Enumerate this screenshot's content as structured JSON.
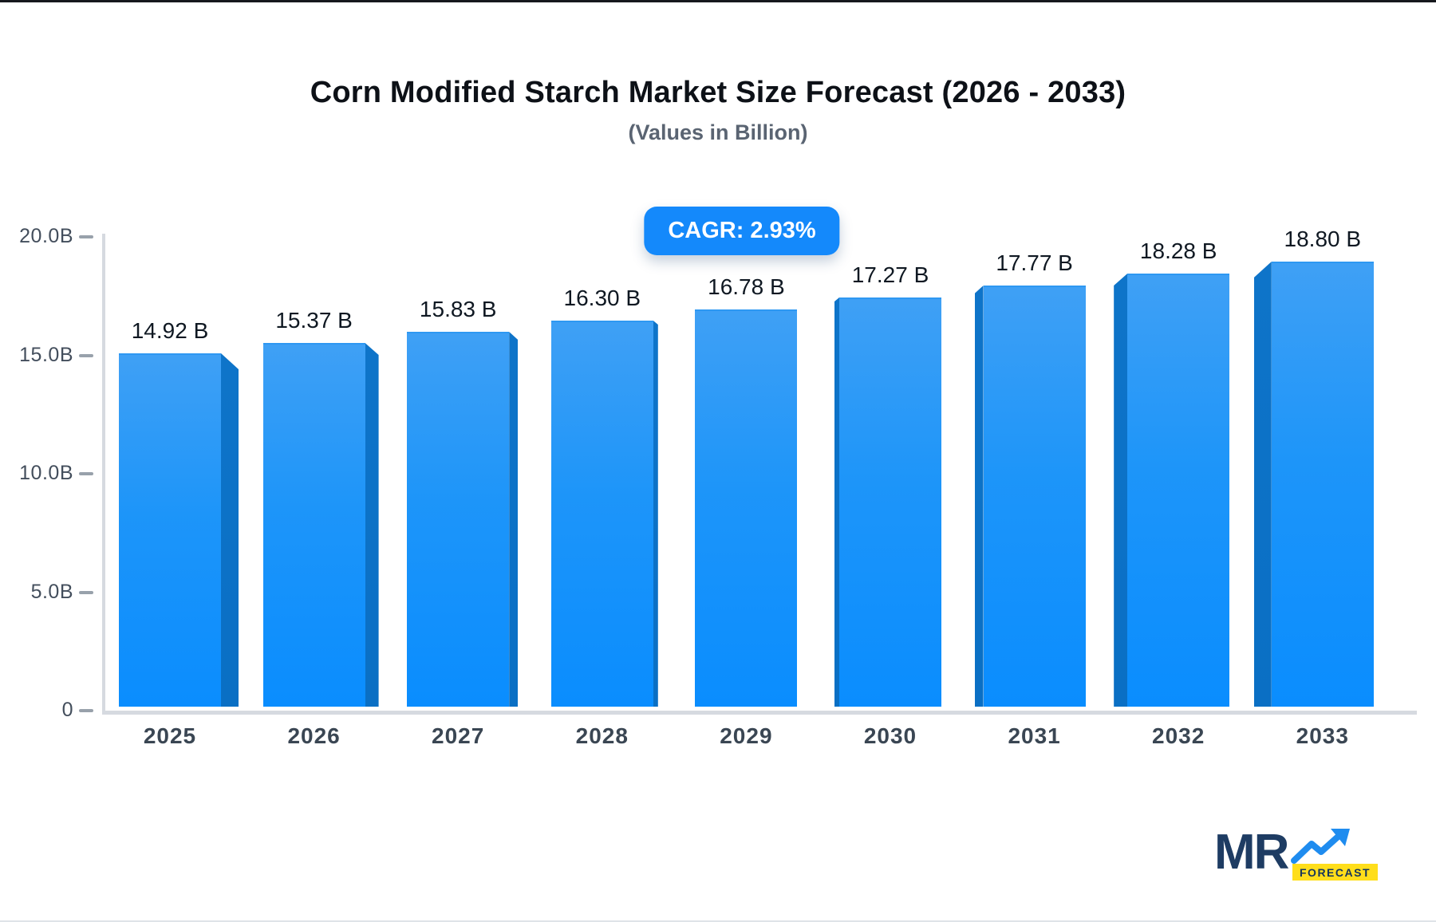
{
  "header": {
    "title": "Corn Modified Starch Market Size Forecast (2026 - 2033)",
    "subtitle": "(Values in Billion)"
  },
  "badge": {
    "label": "CAGR: 2.93%"
  },
  "chart_data": {
    "type": "bar",
    "title": "Corn Modified Starch Market Size Forecast (2026 - 2033)",
    "subtitle": "(Values in Billion)",
    "annotation": "CAGR: 2.93%",
    "categories": [
      "2025",
      "2026",
      "2027",
      "2028",
      "2029",
      "2030",
      "2031",
      "2032",
      "2033"
    ],
    "values": [
      14.92,
      15.37,
      15.83,
      16.3,
      16.78,
      17.27,
      17.77,
      18.28,
      18.8
    ],
    "value_labels": [
      "14.92 B",
      "15.37 B",
      "15.83 B",
      "16.30 B",
      "16.78 B",
      "17.27 B",
      "17.77 B",
      "18.28 B",
      "18.80 B"
    ],
    "unit": "Billion",
    "yticks": [
      {
        "label": "0",
        "value": 0
      },
      {
        "label": "5.0B",
        "value": 5
      },
      {
        "label": "10.0B",
        "value": 10
      },
      {
        "label": "15.0B",
        "value": 15
      },
      {
        "label": "20.0B",
        "value": 20
      }
    ],
    "ylim": [
      0,
      20
    ],
    "xlabel": "",
    "ylabel": "",
    "grid": false,
    "legend": false
  },
  "colors": {
    "bar_front_top": "#3fa0f5",
    "bar_front_bottom": "#0a8dfe",
    "bar_side": "#0a6fc4",
    "badge_background": "#1489fb",
    "badge_text": "#ffffff",
    "axis_line": "#d6dae0",
    "tick": "#98a1ab",
    "axis_text": "#434e5c",
    "category_text": "#3a4653",
    "value_text": "#0f1822",
    "title_text": "#0d1117",
    "subtitle_text": "#5a6472",
    "logo_navy": "#1e3c63",
    "logo_arrow_blue": "#1f8cef",
    "logo_yellow": "#ffde1b"
  },
  "logo": {
    "text": "MR",
    "sub": "FORECAST"
  }
}
